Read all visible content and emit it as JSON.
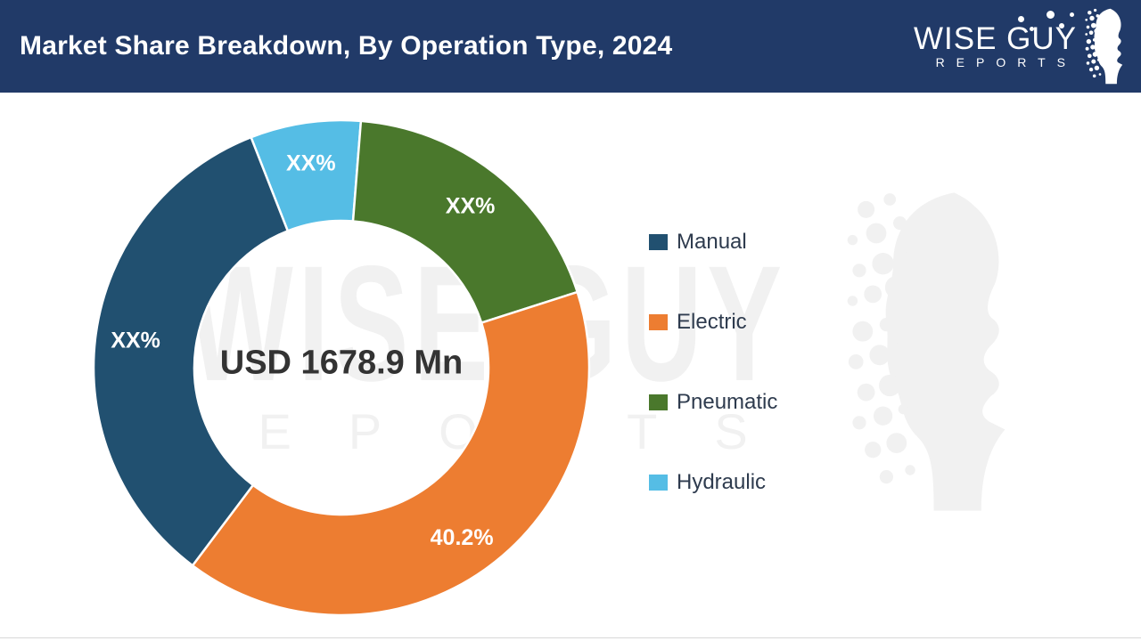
{
  "header": {
    "title": "Market Share Breakdown, By Operation Type, 2024",
    "bg_color": "#213A68",
    "logo": {
      "line1": "WISE GUY",
      "line2": "REPORTS"
    }
  },
  "watermark": {
    "line1": "WISE GUY",
    "line2": "REPORTS"
  },
  "chart_data": {
    "type": "pie",
    "subtype": "donut",
    "title": "Market Share Breakdown, By Operation Type, 2024",
    "center_label": "USD 1678.9 Mn",
    "legend_position": "right",
    "start_angle_deg": -21.4,
    "render_order": [
      "Hydraulic",
      "Pneumatic",
      "Electric",
      "Manual"
    ],
    "slices": [
      {
        "label": "Manual",
        "display_value": "XX%",
        "est_pct": 33.8,
        "color": "#215070"
      },
      {
        "label": "Electric",
        "display_value": "40.2%",
        "est_pct": 40.2,
        "color": "#ED7D31"
      },
      {
        "label": "Pneumatic",
        "display_value": "XX%",
        "est_pct": 18.8,
        "color": "#4A782C"
      },
      {
        "label": "Hydraulic",
        "display_value": "XX%",
        "est_pct": 7.2,
        "color": "#55BDE5"
      }
    ]
  }
}
